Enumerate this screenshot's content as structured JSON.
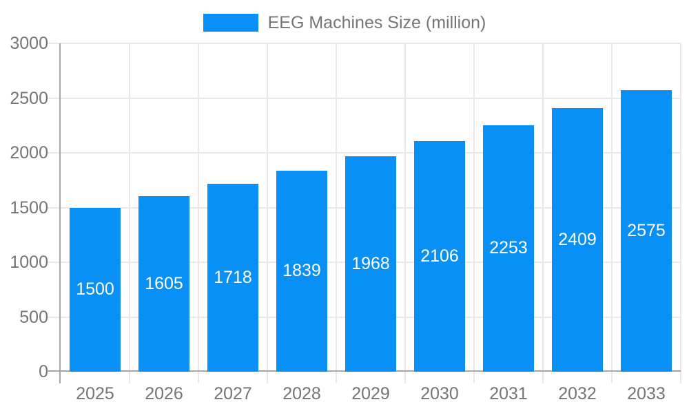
{
  "legend": {
    "series_label": "EEG Machines Size (million)"
  },
  "chart_data": {
    "type": "bar",
    "title": "EEG Machines Size (million)",
    "categories": [
      "2025",
      "2026",
      "2027",
      "2028",
      "2029",
      "2030",
      "2031",
      "2032",
      "2033"
    ],
    "values": [
      1500,
      1605,
      1718,
      1839,
      1968,
      2106,
      2253,
      2409,
      2575
    ],
    "bar_labels": [
      "1500",
      "1605",
      "1718",
      "1839",
      "1968",
      "2106",
      "2253",
      "2409",
      "2575"
    ],
    "xlabel": "",
    "ylabel": "",
    "ylim": [
      0,
      3000
    ],
    "yticks": [
      0,
      500,
      1000,
      1500,
      2000,
      2500,
      3000
    ],
    "grid": true,
    "legend_position": "top-center",
    "bar_label_position": "middle-of-bar",
    "colors": {
      "bar": "#0990F7",
      "axis": "#A6A6A6",
      "grid": "#E8E8E8",
      "tick_text": "#757575",
      "bar_label_text": "#FFFFFF",
      "background": "#FFFFFF"
    }
  }
}
